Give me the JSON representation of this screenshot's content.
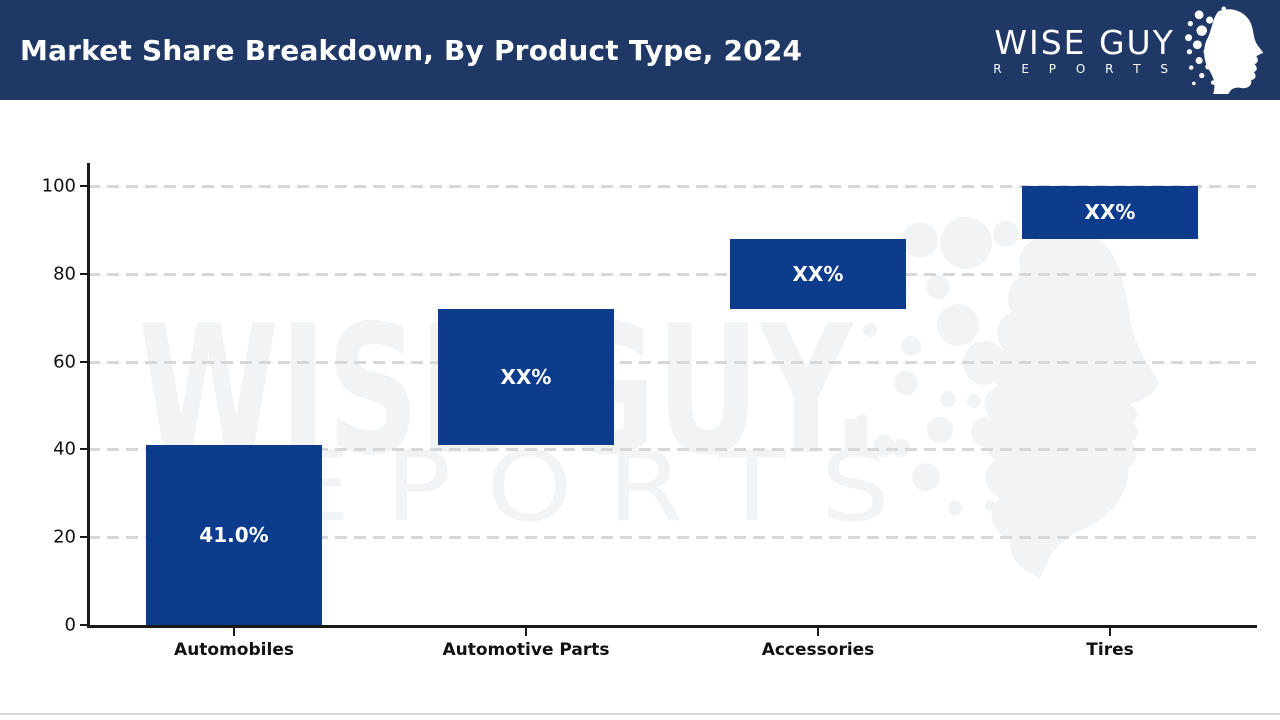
{
  "header": {
    "title": "Market Share Breakdown, By Product Type, 2024",
    "logo": {
      "line1": "WISE GUY",
      "line2": "R E P O R T S"
    }
  },
  "watermark": {
    "line1": "WISE GUY.",
    "line2": "R E P O R T S"
  },
  "chart_data": {
    "type": "bar",
    "subtype": "waterfall",
    "title": "Market Share Breakdown, By Product Type, 2024",
    "categories": [
      "Automobiles",
      "Automotive Parts",
      "Accessories",
      "Tires"
    ],
    "segments": [
      {
        "category": "Automobiles",
        "start": 0,
        "end": 41,
        "label": "41.0%"
      },
      {
        "category": "Automotive Parts",
        "start": 41,
        "end": 72,
        "label": "XX%"
      },
      {
        "category": "Accessories",
        "start": 72,
        "end": 88,
        "label": "XX%"
      },
      {
        "category": "Tires",
        "start": 88,
        "end": 100,
        "label": "XX%"
      }
    ],
    "ylim": [
      0,
      100
    ],
    "yticks": [
      0,
      20,
      40,
      60,
      80,
      100
    ],
    "xlabel": "",
    "ylabel": "",
    "grid": "horizontal-dashed",
    "legend": "none",
    "colors": {
      "bar": "#0D3C8C",
      "bar_label": "#FFFFFF",
      "header_bg": "#1F3866",
      "grid": "#D7D7D7",
      "axis": "#1A1A1A",
      "watermark": "#F1F3F5"
    }
  }
}
